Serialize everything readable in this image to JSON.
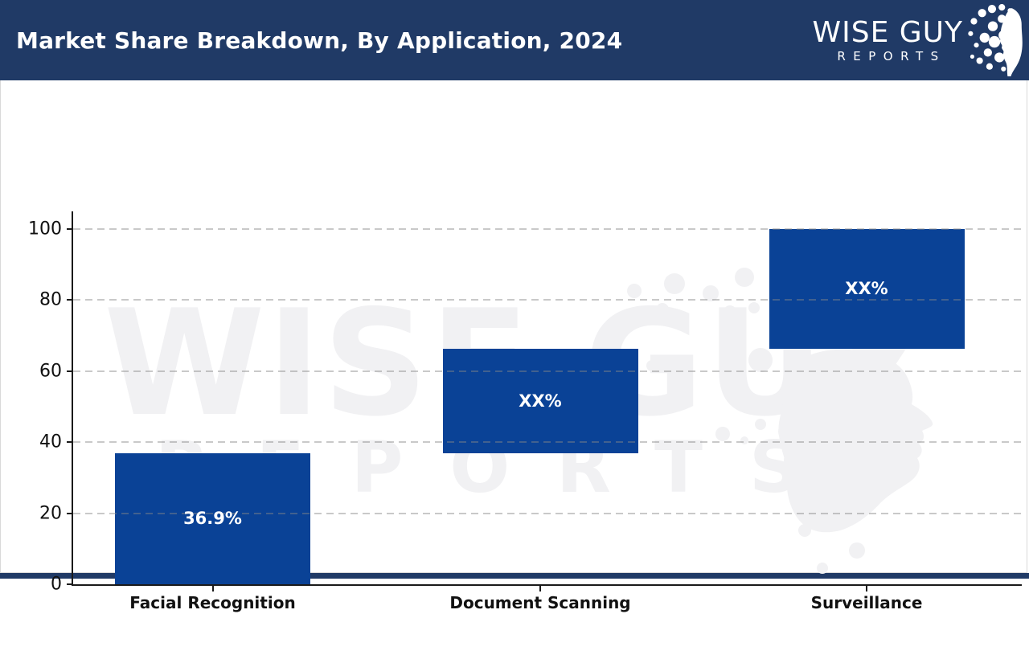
{
  "header": {
    "title": "Market Share Breakdown, By Application, 2024",
    "bg_color": "#203a66",
    "logo": {
      "line1": "WISE GUY",
      "line2": "REPORTS"
    }
  },
  "watermark": {
    "line1": "WISE GUY",
    "line2": "REPORTS"
  },
  "chart_data": {
    "type": "bar",
    "subtype": "waterfall",
    "title": "Market Share Breakdown, By Application, 2024",
    "categories": [
      "Facial Recognition",
      "Document Scanning",
      "Surveillance"
    ],
    "series": [
      {
        "name": "Market Share",
        "segments": [
          {
            "category": "Facial Recognition",
            "start": 0,
            "end": 36.9,
            "label": "36.9%"
          },
          {
            "category": "Document Scanning",
            "start": 36.9,
            "end": 66.3,
            "label": "XX%"
          },
          {
            "category": "Surveillance",
            "start": 66.3,
            "end": 100,
            "label": "XX%"
          }
        ]
      }
    ],
    "xlabel": "",
    "ylabel": "",
    "ylim": [
      0,
      100
    ],
    "yticks": [
      0,
      20,
      40,
      60,
      80,
      100
    ],
    "grid": "horizontal-dashed",
    "legend": "none",
    "bar_color": "#0a4296",
    "bar_label_color": "#ffffff",
    "axis_color": "#1a1a1a",
    "gridline_color": "#d4d4d4"
  }
}
